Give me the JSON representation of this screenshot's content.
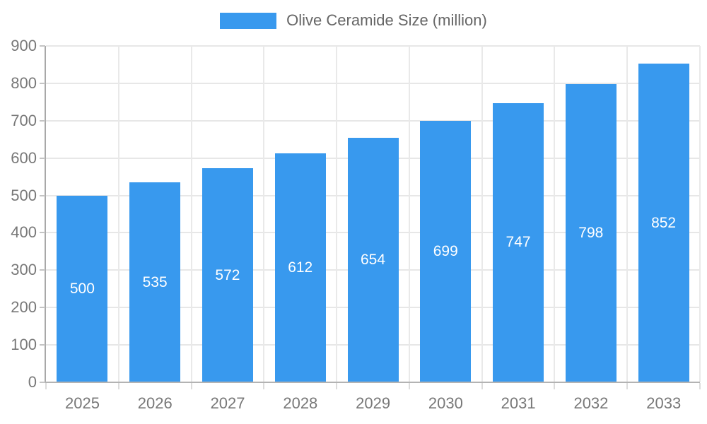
{
  "legend": {
    "label": "Olive Ceramide Size (million)"
  },
  "chart_data": {
    "type": "bar",
    "title": "Olive Ceramide Size (million)",
    "categories": [
      "2025",
      "2026",
      "2027",
      "2028",
      "2029",
      "2030",
      "2031",
      "2032",
      "2033"
    ],
    "values": [
      500,
      535,
      572,
      612,
      654,
      699,
      747,
      798,
      852
    ],
    "xlabel": "",
    "ylabel": "",
    "ylim": [
      0,
      900
    ],
    "ytick_step": 100,
    "grid": true,
    "legend_position": "top",
    "legend_entries": [
      "Olive Ceramide Size (million)"
    ],
    "bar_value_labels": [
      "500",
      "535",
      "572",
      "612",
      "654",
      "699",
      "747",
      "798",
      "852"
    ],
    "colors": {
      "bar": "#3899EE",
      "bar_label": "#FFFFFF",
      "axis_text": "#787878",
      "legend_text": "#666666",
      "gridline": "#E7E7E7",
      "axis_line": "#ACACAC",
      "background": "#FFFFFF"
    }
  }
}
